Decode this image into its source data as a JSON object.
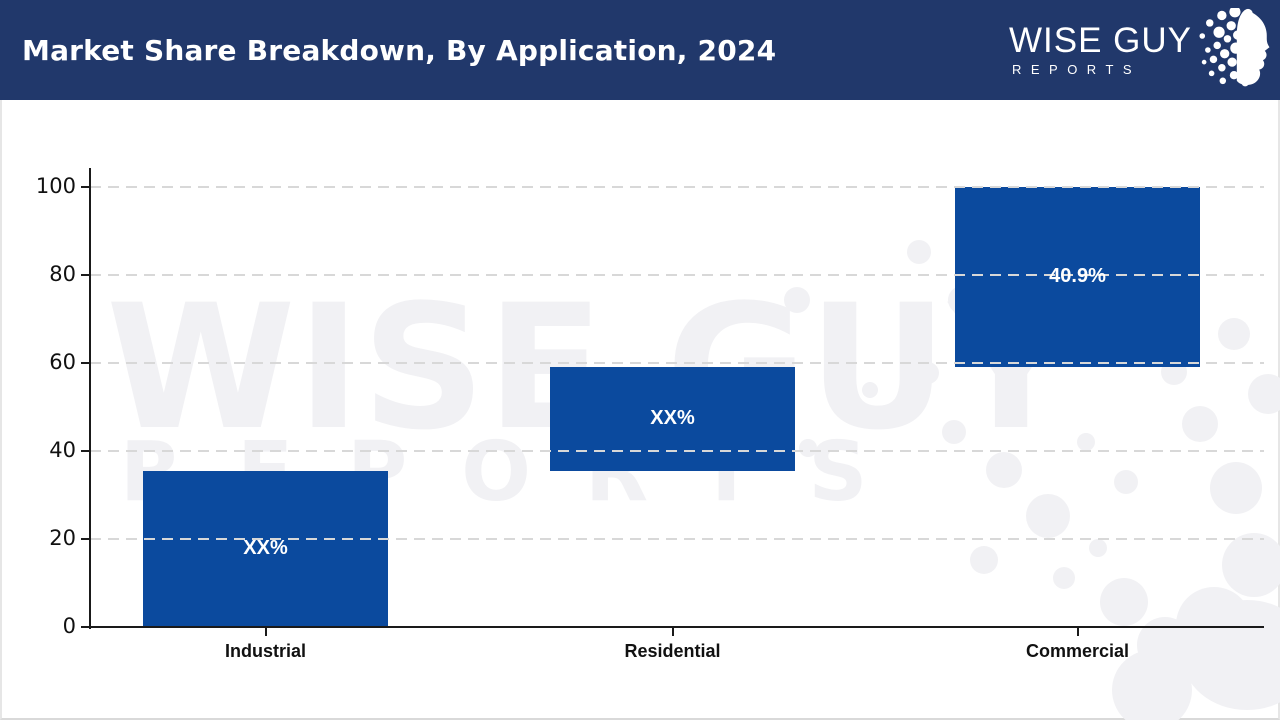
{
  "header": {
    "title": "Market Share Breakdown, By Application, 2024",
    "bg_color": "#21386b",
    "logo": {
      "wordmark": "WISE GUY",
      "subtext": "REPORTS"
    }
  },
  "watermark": {
    "line1": "WISE GUY",
    "line2": "REPORTS"
  },
  "chart_data": {
    "type": "bar",
    "subtype": "waterfall",
    "title": "Market Share Breakdown, By Application, 2024",
    "categories": [
      "Industrial",
      "Residential",
      "Commercial"
    ],
    "segments": [
      {
        "category": "Industrial",
        "start": 0,
        "end": 35.5,
        "label": "XX%"
      },
      {
        "category": "Residential",
        "start": 35.5,
        "end": 59.1,
        "label": "XX%"
      },
      {
        "category": "Commercial",
        "start": 59.1,
        "end": 100,
        "label": "40.9%"
      }
    ],
    "ylim": [
      0,
      100
    ],
    "yticks": [
      0,
      20,
      40,
      60,
      80,
      100
    ],
    "xlabel": "",
    "ylabel": "",
    "grid": "horizontal-dashed",
    "legend": "none",
    "bar_color": "#0b4a9e",
    "bar_label_color": "#ffffff",
    "gridline_color": "#d8d8d8"
  }
}
